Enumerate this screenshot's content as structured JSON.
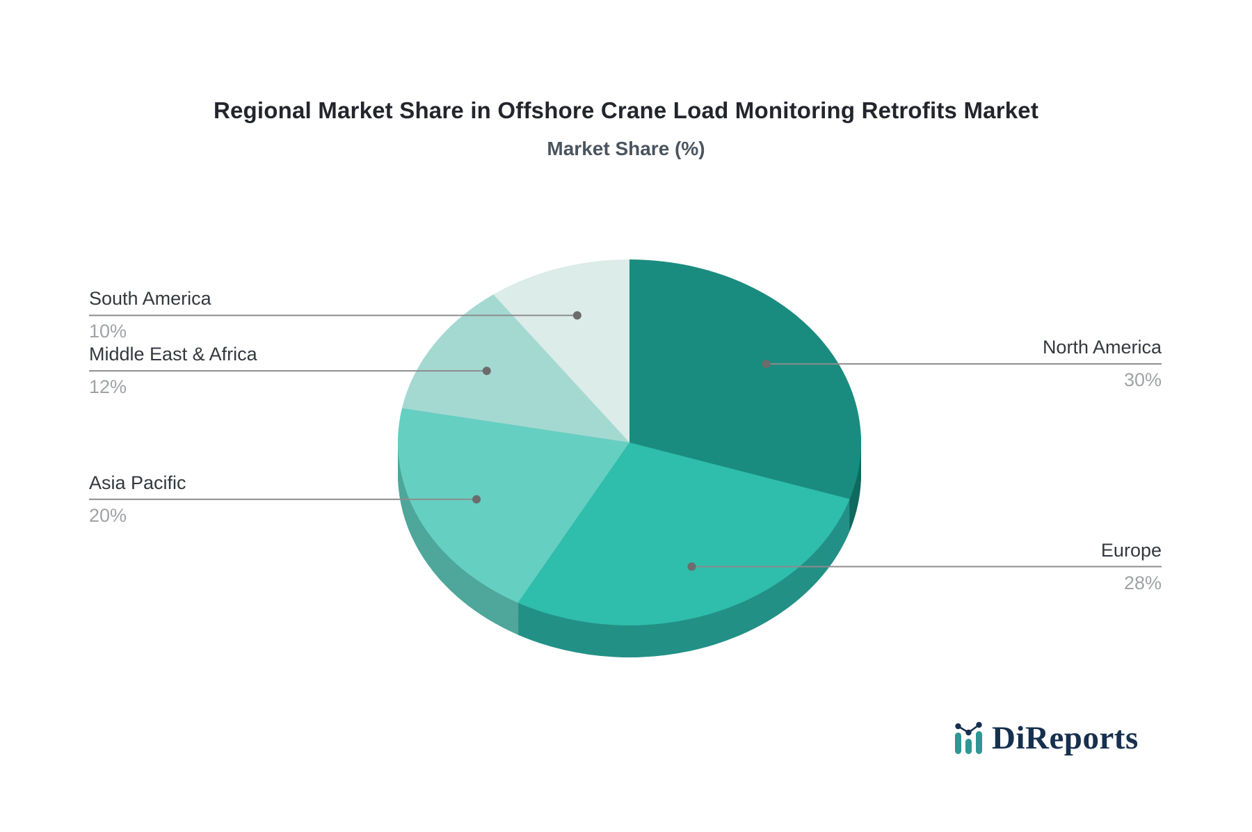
{
  "title": "Regional Market Share in Offshore Crane Load Monitoring Retrofits Market",
  "subtitle": "Market Share (%)",
  "chart_data": {
    "type": "pie",
    "title": "Regional Market Share in Offshore Crane Load Monitoring Retrofits Market",
    "subtitle": "Market Share (%)",
    "unit": "%",
    "effect": "3d-depth",
    "start_angle": "12 o'clock, clockwise",
    "categories": [
      "North America",
      "Europe",
      "Asia Pacific",
      "Middle East & Africa",
      "South America"
    ],
    "values": [
      30,
      28,
      20,
      12,
      10
    ],
    "slices": [
      {
        "name": "North America",
        "value": 30,
        "display": "30%",
        "color": "#1a8c7f",
        "side_color": "#11695f",
        "label_side": "right"
      },
      {
        "name": "Europe",
        "value": 28,
        "display": "28%",
        "color": "#2fbdac",
        "side_color": "#239086",
        "label_side": "right"
      },
      {
        "name": "Asia Pacific",
        "value": 20,
        "display": "20%",
        "color": "#65cfc2",
        "side_color": "#4ea79a",
        "label_side": "left"
      },
      {
        "name": "Middle East & Africa",
        "value": 12,
        "display": "12%",
        "color": "#a4d9d2",
        "side_color": "#7cb3ab",
        "label_side": "left"
      },
      {
        "name": "South America",
        "value": 10,
        "display": "10%",
        "color": "#dcece8",
        "side_color": "#a9c6c1",
        "label_side": "left"
      }
    ],
    "style": {
      "leader_line_color": "#8c8c8c",
      "leader_dot_color": "#6c6c6c",
      "name_color": "#33383d",
      "value_color": "#9fa3a6",
      "legend": "none",
      "grid": "off"
    }
  },
  "logo": {
    "text": "DiReports",
    "icon": "bar-line-chart-icon",
    "text_color": "#16304e",
    "bar_color": "#2e9694"
  }
}
